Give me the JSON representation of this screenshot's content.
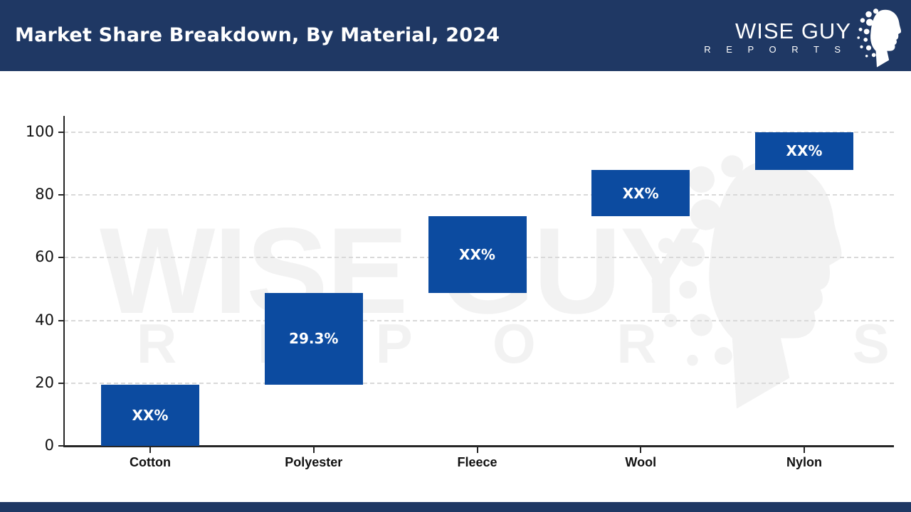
{
  "header": {
    "title": "Market Share Breakdown, By Material, 2024",
    "logo": {
      "line1": "WISE GUY",
      "line2": "R E P O R T S"
    }
  },
  "watermark": {
    "line1": "WISE GUY",
    "line2": "R E P O R T S"
  },
  "footer": {},
  "chart_data": {
    "type": "bar",
    "subtype": "waterfall",
    "title": "Market Share Breakdown, By Material, 2024",
    "categories": [
      "Cotton",
      "Polyester",
      "Fleece",
      "Wool",
      "Nylon"
    ],
    "segments": [
      {
        "category": "Cotton",
        "start": 0,
        "end": 19.5,
        "label": "XX%"
      },
      {
        "category": "Polyester",
        "start": 19.5,
        "end": 48.8,
        "label": "29.3%"
      },
      {
        "category": "Fleece",
        "start": 48.8,
        "end": 73.2,
        "label": "XX%"
      },
      {
        "category": "Wool",
        "start": 73.2,
        "end": 88,
        "label": "XX%"
      },
      {
        "category": "Nylon",
        "start": 88,
        "end": 100,
        "label": "XX%"
      }
    ],
    "xlabel": "",
    "ylabel": "",
    "ylim": [
      0,
      100
    ],
    "yticks": [
      0,
      20,
      40,
      60,
      80,
      100
    ],
    "grid": "horizontal-dashed",
    "legend": null,
    "bar_color": "#0c4ba0"
  },
  "colors": {
    "header_bg": "#1f3864",
    "footer_bg": "#1f3864",
    "bar": "#0c4ba0",
    "grid": "#d9d9d9",
    "axis": "#262626",
    "title_text": "#ffffff",
    "watermark": "#f2f2f2"
  }
}
